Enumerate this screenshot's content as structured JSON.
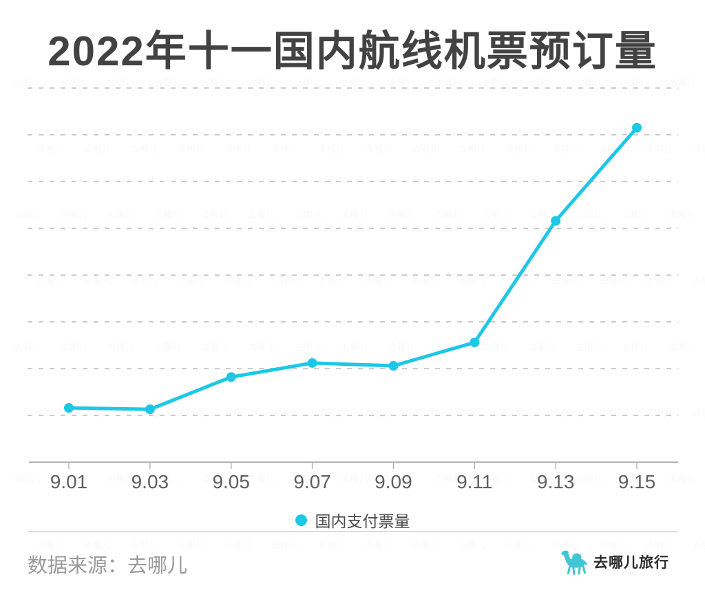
{
  "title": "2022年十一国内航线机票预订量",
  "chart_data": {
    "type": "line",
    "title": "2022年十一国内航线机票预订量",
    "categories": [
      "9.01",
      "9.03",
      "9.05",
      "9.07",
      "9.09",
      "9.11",
      "9.13",
      "9.15"
    ],
    "series": [
      {
        "name": "国内支付票量",
        "values": [
          1.16,
          1.13,
          1.82,
          2.12,
          2.06,
          2.56,
          5.16,
          7.15
        ]
      }
    ],
    "xlabel": "",
    "ylabel": "",
    "ylim": [
      0,
      8
    ],
    "y_axis_labels_visible": false,
    "grid": "horizontal-dashed",
    "legend_position": "bottom",
    "line_color": "#1ec7e6",
    "marker": "circle"
  },
  "legend": {
    "marker_color": "#1ec7e6",
    "label": "国内支付票量"
  },
  "footer": {
    "source": "数据来源：去哪儿",
    "logo_text": "去哪儿旅行"
  },
  "watermark": {
    "text": "去哪儿"
  },
  "colors": {
    "accent_cyan": "#1ec7e6",
    "camel_cyan": "#3fc6d5",
    "title_text": "#424242",
    "tick_text": "#5f5f5f",
    "grid_line": "#cbcbcb",
    "axis_line": "#b3b3b3",
    "source_text": "#9a9a9a",
    "divider": "#dcdcdc",
    "background": "#ffffff"
  }
}
